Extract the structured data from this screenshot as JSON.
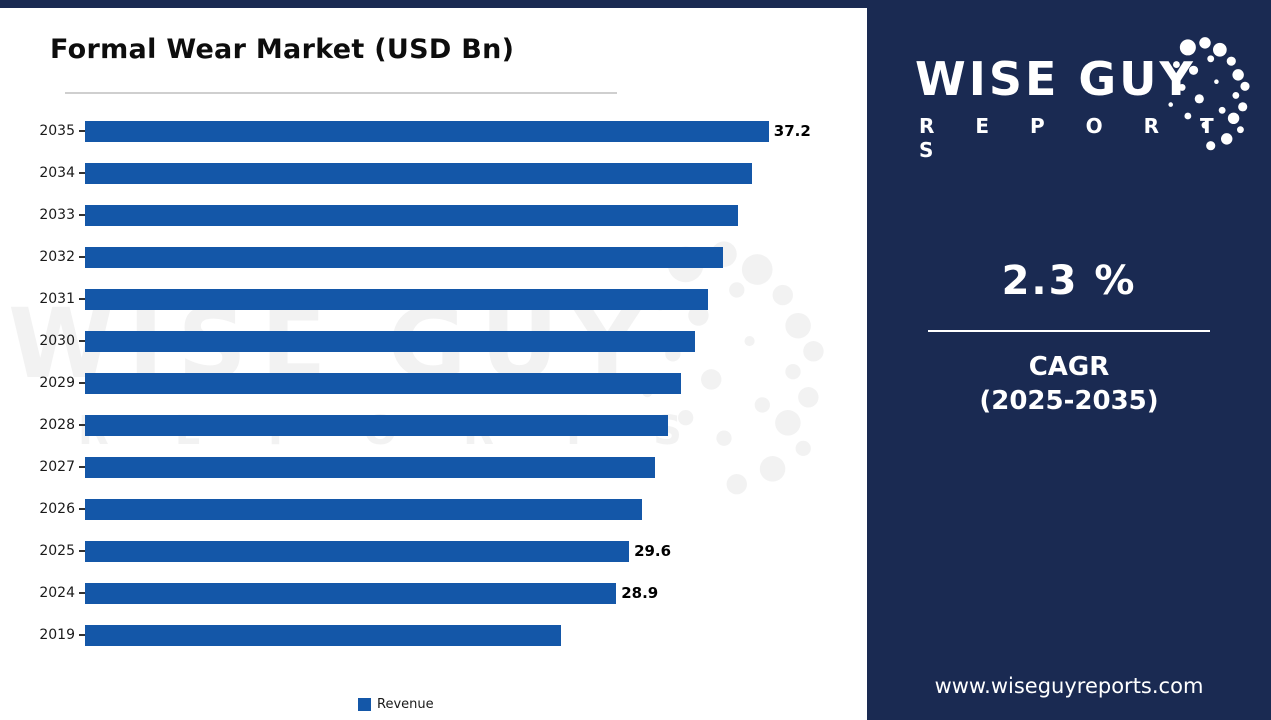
{
  "header": {
    "title": "Formal Wear Market (USD Bn)"
  },
  "legend": {
    "label": "Revenue"
  },
  "watermark": {
    "line1": "WISE GUY",
    "line2": "R E P O R T S"
  },
  "panel": {
    "brand_line1": "WISE GUY",
    "brand_line2": "R E P O R T S",
    "cagr_value": "2.3 %",
    "cagr_label": "CAGR",
    "cagr_range": "(2025-2035)",
    "website": "www.wiseguyreports.com",
    "bg_color": "#1a2a52",
    "text_color": "#ffffff"
  },
  "chart_data": {
    "type": "bar",
    "orientation": "horizontal",
    "title": "Formal Wear Market (USD Bn)",
    "series_name": "Revenue",
    "categories": [
      "2035",
      "2034",
      "2033",
      "2032",
      "2031",
      "2030",
      "2029",
      "2028",
      "2027",
      "2026",
      "2025",
      "2024",
      "2019"
    ],
    "values": [
      37.2,
      36.3,
      35.5,
      34.7,
      33.9,
      33.2,
      32.4,
      31.7,
      31.0,
      30.3,
      29.6,
      28.9,
      25.9
    ],
    "value_labels": {
      "2035": "37.2",
      "2025": "29.6",
      "2024": "28.9"
    },
    "bar_color": "#1457a8",
    "xlim": [
      0,
      42
    ],
    "xlabel": "",
    "ylabel": "",
    "grid": false,
    "legend_position": "bottom-center"
  }
}
